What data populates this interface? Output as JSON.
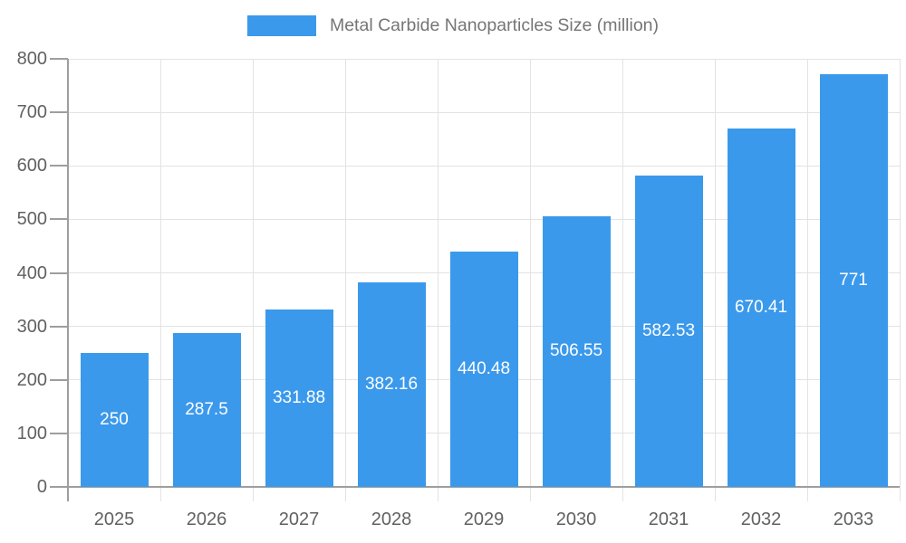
{
  "legend": {
    "label": "Metal Carbide Nanoparticles Size (million)"
  },
  "colors": {
    "bar": "#3b99ec",
    "axis": "#9e9e9e",
    "gridline": "#e3e3e3",
    "tick_label": "#616161",
    "legend_text": "#757575",
    "value_label": "#ffffff"
  },
  "chart_data": {
    "type": "bar",
    "title": "Metal Carbide Nanoparticles Size (million)",
    "categories": [
      "2025",
      "2026",
      "2027",
      "2028",
      "2029",
      "2030",
      "2031",
      "2032",
      "2033"
    ],
    "values": [
      250,
      287.5,
      331.88,
      382.16,
      440.48,
      506.55,
      582.53,
      670.41,
      771
    ],
    "value_labels": [
      "250",
      "287.5",
      "331.88",
      "382.16",
      "440.48",
      "506.55",
      "582.53",
      "670.41",
      "771"
    ],
    "xlabel": "",
    "ylabel": "",
    "ylim": [
      0,
      800
    ],
    "ytick_interval": 100,
    "yticks": [
      "0",
      "100",
      "200",
      "300",
      "400",
      "500",
      "600",
      "700",
      "800"
    ],
    "grid": true,
    "legend_position": "top",
    "value_label_position": "center-inside"
  }
}
